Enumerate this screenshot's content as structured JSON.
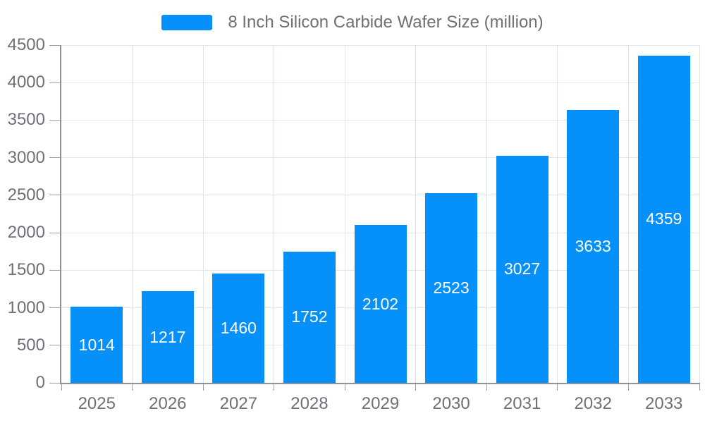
{
  "legend": {
    "label": "8 Inch Silicon Carbide Wafer Size (million)"
  },
  "chart_data": {
    "type": "bar",
    "title": "8 Inch Silicon Carbide Wafer Size (million)",
    "legend_entries": [
      "8 Inch Silicon Carbide Wafer Size (million)"
    ],
    "legend_position": "top-center",
    "categories": [
      "2025",
      "2026",
      "2027",
      "2028",
      "2029",
      "2030",
      "2031",
      "2032",
      "2033"
    ],
    "values": [
      1014,
      1217,
      1460,
      1752,
      2102,
      2523,
      3027,
      3633,
      4359
    ],
    "bar_value_labels": [
      "1014",
      "1217",
      "1460",
      "1752",
      "2102",
      "2523",
      "3027",
      "3633",
      "4359"
    ],
    "xlabel": "",
    "ylabel": "",
    "ylim": [
      0,
      4500
    ],
    "ytick_step": 500,
    "ytick_labels": [
      "0",
      "500",
      "1000",
      "1500",
      "2000",
      "2500",
      "3000",
      "3500",
      "4000",
      "4500"
    ],
    "grid": true,
    "colors": {
      "bar": "#0690fa",
      "bar_label": "#ffffff",
      "axis_line": "#8d929a",
      "tick": "#9aa0a8",
      "axis_label": "#6e7079",
      "grid_line": "#e0e4ec",
      "background": "#ffffff"
    }
  }
}
